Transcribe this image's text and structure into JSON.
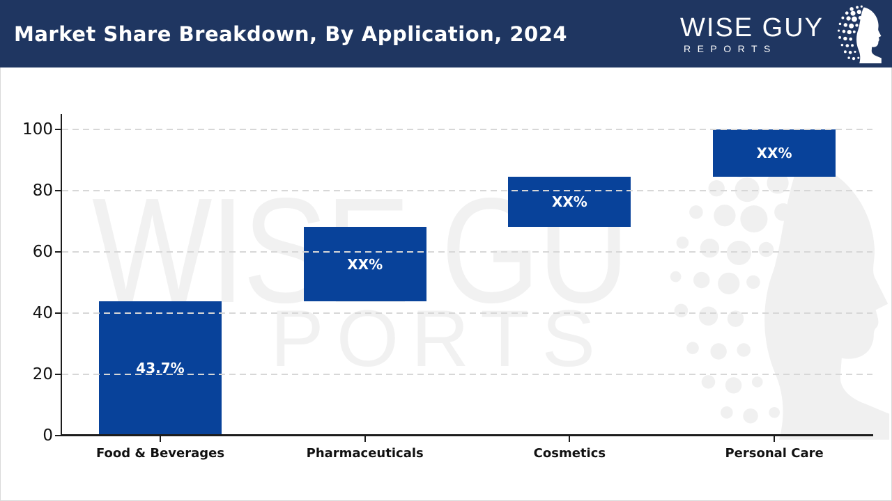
{
  "header": {
    "logo": {
      "line1": "WISE GUY",
      "line2": "REPORTS"
    }
  },
  "watermark": {
    "line1": "WISE GU",
    "line2": "PORTS"
  },
  "chart_data": {
    "type": "bar",
    "subtype": "waterfall",
    "title": "Market Share Breakdown, By Application, 2024",
    "categories": [
      "Food & Beverages",
      "Pharmaceuticals",
      "Cosmetics",
      "Personal Care"
    ],
    "segments": [
      {
        "category": "Food & Beverages",
        "start": 0,
        "end": 43.7,
        "label": "43.7%"
      },
      {
        "category": "Pharmaceuticals",
        "start": 43.7,
        "end": 68.2,
        "label": "XX%"
      },
      {
        "category": "Cosmetics",
        "start": 68.2,
        "end": 84.5,
        "label": "XX%"
      },
      {
        "category": "Personal Care",
        "start": 84.5,
        "end": 100,
        "label": "XX%"
      }
    ],
    "xlabel": "",
    "ylabel": "",
    "yticks": [
      0,
      20,
      40,
      60,
      80,
      100
    ],
    "ylim": [
      0,
      105
    ],
    "grid": "dashed-horizontal",
    "legend": "none",
    "bar_color": "#08429a",
    "value_label_color": "#ffffff"
  },
  "colors": {
    "header_bg": "#1f3661",
    "axis": "#1c1c1c",
    "gridline": "#d7d7d7",
    "watermark": "#f0f0f0"
  }
}
